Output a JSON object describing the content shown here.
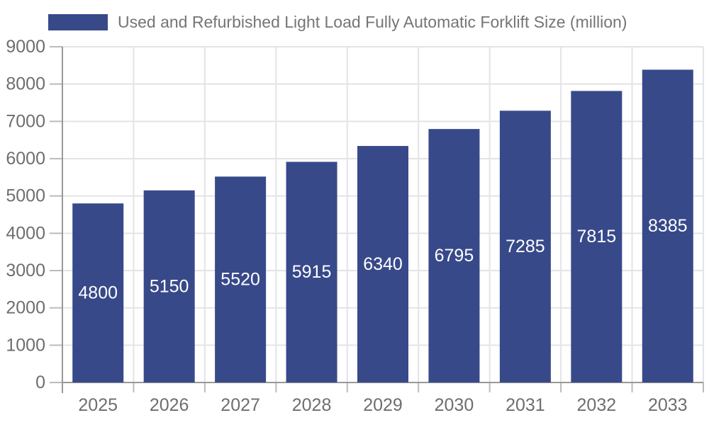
{
  "legend": {
    "label": "Used and Refurbished Light Load Fully Automatic Forklift Size (million)"
  },
  "chart_data": {
    "type": "bar",
    "title": "Used and Refurbished Light Load Fully Automatic Forklift Size (million)",
    "categories": [
      "2025",
      "2026",
      "2027",
      "2028",
      "2029",
      "2030",
      "2031",
      "2032",
      "2033"
    ],
    "values": [
      4800,
      5150,
      5520,
      5915,
      6340,
      6795,
      7285,
      7815,
      8385
    ],
    "xlabel": "",
    "ylabel": "",
    "ylim": [
      0,
      9000
    ],
    "ytick_step": 1000,
    "ytick_labels": [
      "0",
      "1000",
      "2000",
      "3000",
      "4000",
      "5000",
      "6000",
      "7000",
      "8000",
      "9000"
    ],
    "grid": true,
    "legend_position": "top-left",
    "value_labels_inside_bars": true,
    "colors": {
      "bar": "#38498a",
      "bar_label": "#ffffff",
      "grid": "#e3e3e9",
      "axis": "#999999",
      "tick": "#bbbbbb",
      "tick_label": "#6e6e6e",
      "legend_text": "#757575"
    }
  }
}
